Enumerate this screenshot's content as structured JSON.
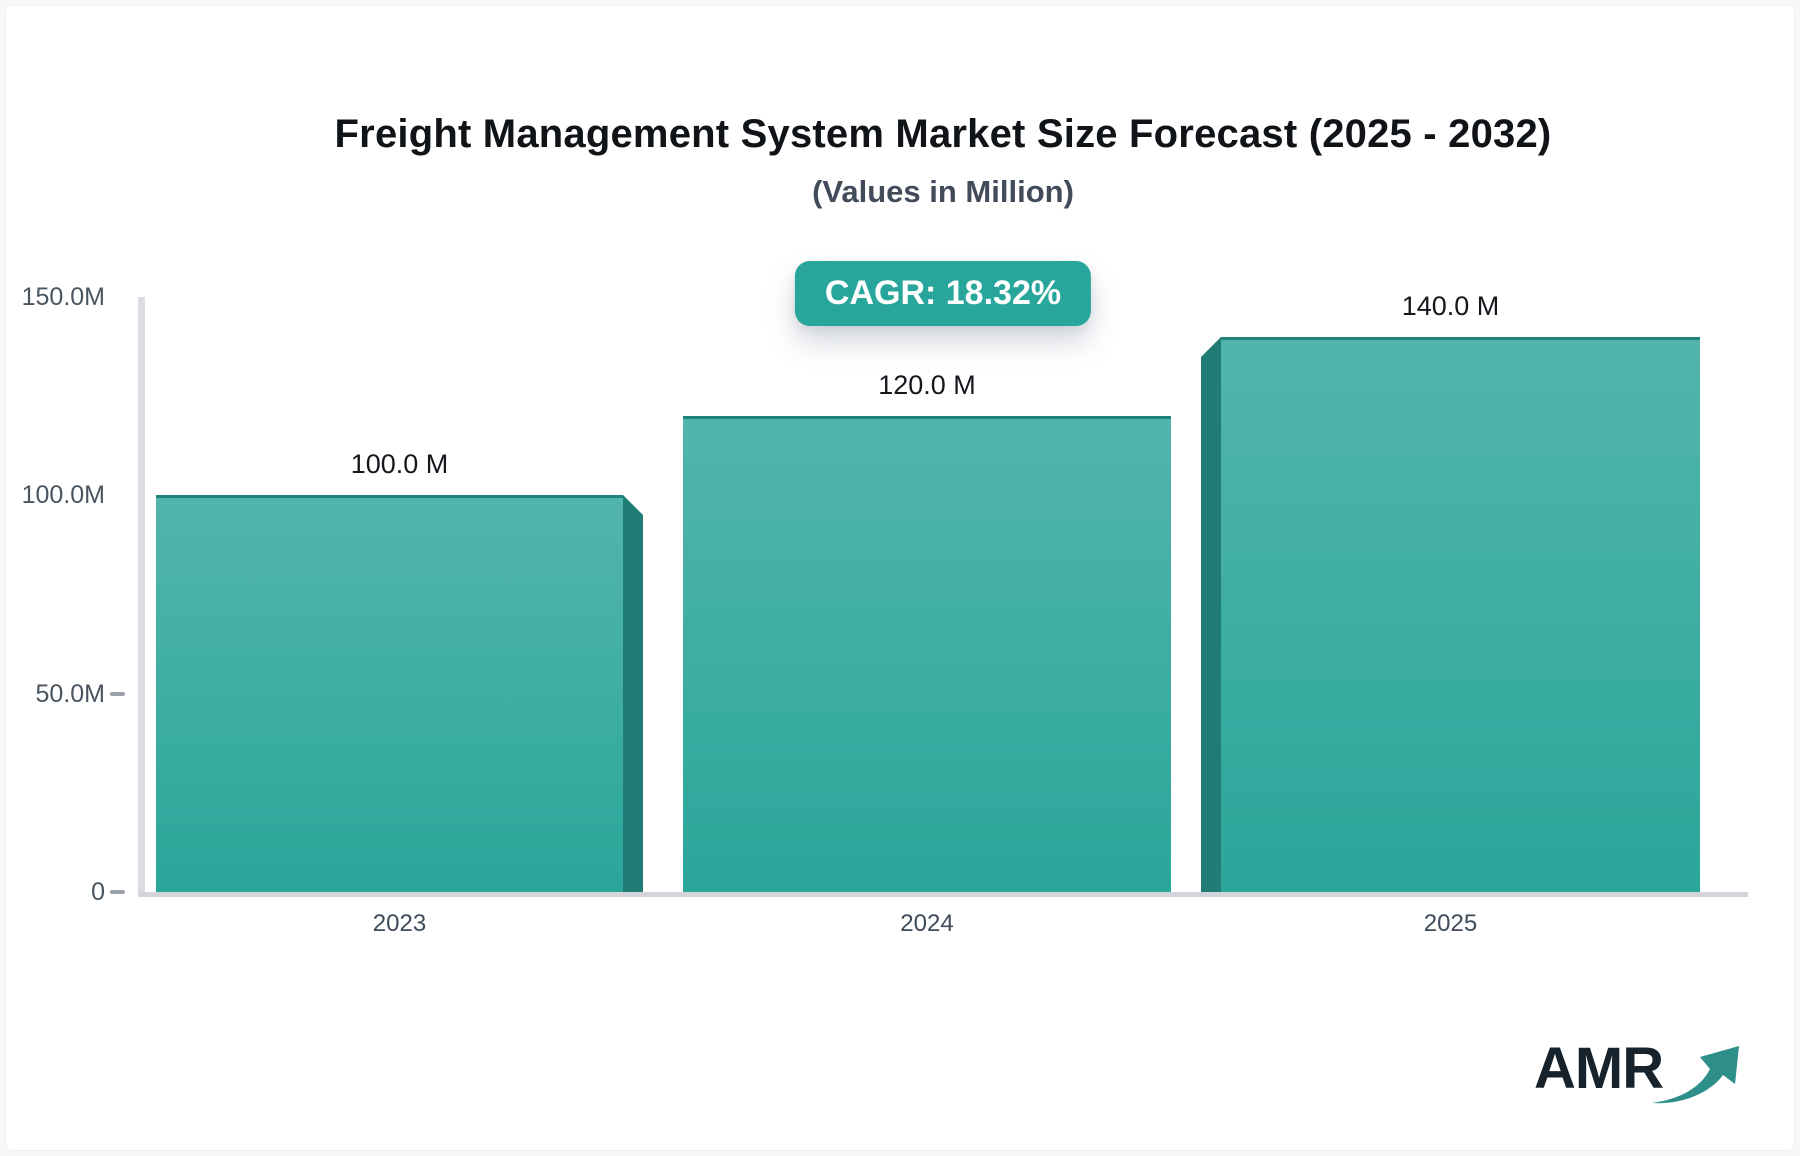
{
  "header": {
    "title": "Freight Management System Market Size Forecast (2025 - 2032)",
    "subtitle": "(Values in Million)"
  },
  "badge": {
    "label": "CAGR: 18.32%",
    "color": "#29a69b"
  },
  "chart_data": {
    "type": "bar",
    "title": "Freight Management System Market Size Forecast (2025 - 2032)",
    "subtitle": "(Values in Million)",
    "unit": "Million",
    "categories": [
      "2023",
      "2024",
      "2025"
    ],
    "values": [
      100.0,
      120.0,
      140.0
    ],
    "value_labels": [
      "100.0 M",
      "120.0 M",
      "140.0 M"
    ],
    "annotation": "CAGR: 18.32%",
    "xlabel": "",
    "ylabel": "",
    "ylim": [
      0,
      150
    ],
    "grid": false,
    "legend": "none",
    "yticks": [
      {
        "value": 150,
        "label": "150.0M",
        "tick_mark": false
      },
      {
        "value": 100,
        "label": "100.0M",
        "tick_mark": false
      },
      {
        "value": 50,
        "label": "50.0M",
        "tick_mark": true
      },
      {
        "value": 0,
        "label": "0",
        "tick_mark": true
      }
    ],
    "bar_style": {
      "gradient_top": "#52b5ac",
      "gradient_bottom": "#2aa69a",
      "top_edge": "#1e837b",
      "bevel_color": "#217c75",
      "bevels": [
        "right",
        "none",
        "left"
      ]
    },
    "axis_colors": {
      "y_axis_line": "#dbdce1",
      "x_axis_line": "#d3d5da",
      "tick": "#9aa1ab"
    }
  },
  "logo": {
    "text": "AMR",
    "text_color": "#16232d",
    "arrow_color": "#2e8f8a"
  }
}
